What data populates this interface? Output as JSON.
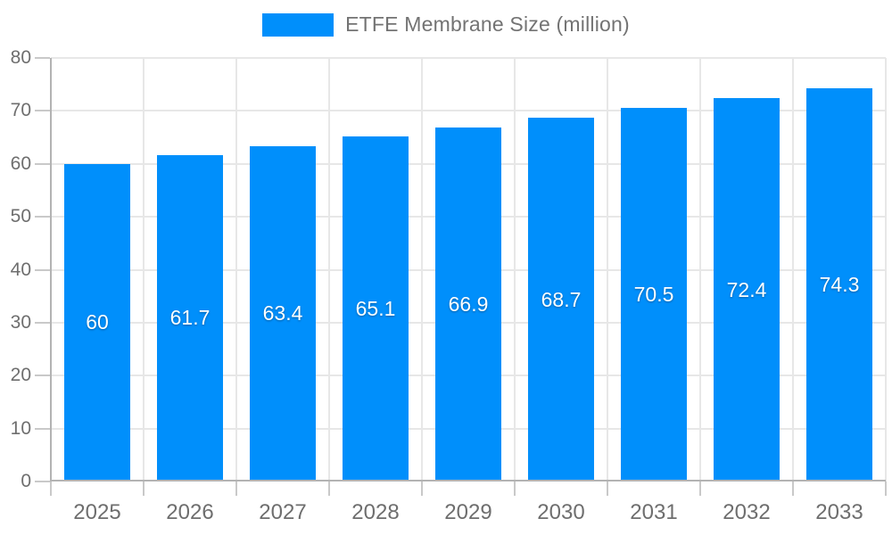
{
  "chart_data": {
    "type": "bar",
    "legend": {
      "label": "ETFE Membrane Size (million)",
      "position": "top"
    },
    "categories": [
      "2025",
      "2026",
      "2027",
      "2028",
      "2029",
      "2030",
      "2031",
      "2032",
      "2033"
    ],
    "series": [
      {
        "name": "ETFE Membrane Size (million)",
        "values": [
          60,
          61.7,
          63.4,
          65.1,
          66.9,
          68.7,
          70.5,
          72.4,
          74.3
        ]
      }
    ],
    "data_labels": [
      "60",
      "61.7",
      "63.4",
      "65.1",
      "66.9",
      "68.7",
      "70.5",
      "72.4",
      "74.3"
    ],
    "xlabel": "",
    "ylabel": "",
    "ylim": [
      0,
      80
    ],
    "y_ticks": [
      0,
      10,
      20,
      30,
      40,
      50,
      60,
      70,
      80
    ],
    "grid": true,
    "colors": {
      "bar": "#008FFB",
      "grid": "#e7e7e7",
      "axis": "#b3b3b3",
      "tick": "#c9c9c9",
      "axis_label": "#6e6e6e",
      "legend_text": "#737373",
      "data_label": "#ffffff",
      "background": "#ffffff"
    }
  }
}
